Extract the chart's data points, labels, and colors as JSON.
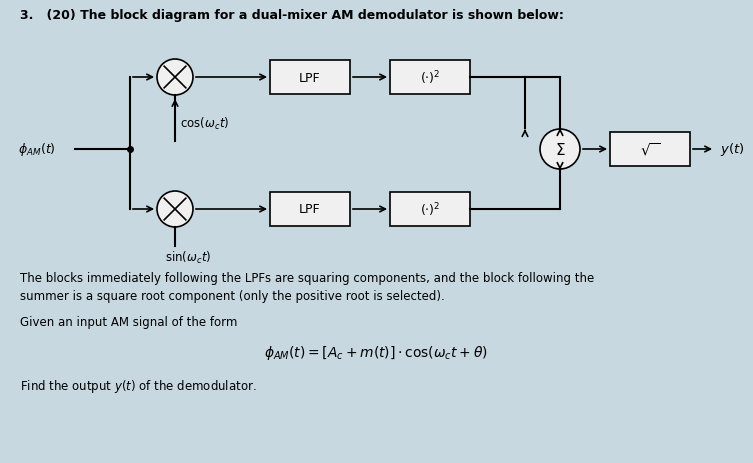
{
  "title": "3.   (20) The block diagram for a dual-mixer AM demodulator is shown below:",
  "bg_color": "#c8d8e0",
  "box_color": "#f0f0f0",
  "box_edge": "#000000",
  "line_color": "#000000",
  "text_color": "#000000",
  "body_text_line1": "The blocks immediately following the LPFs are squaring components, and the block following the",
  "body_text_line2": "summer is a square root component (only the positive root is selected).",
  "body_text_line3": "Given an input AM signal of the form",
  "formula": "$\\phi_{AM}(t) = [A_c + m(t)] \\cdot \\cos(\\omega_c t + \\theta)$",
  "footer": "Find the output $y(t)$ of the demodulator.",
  "phi_am": "$\\phi_{AM}(t)$",
  "cos_label": "$\\cos(\\omega_c t)$",
  "sin_label": "$\\sin(\\omega_c t)$",
  "lpf_label": "LPF",
  "sq_label": "$(\\cdot)^2$",
  "sigma_label": "$\\Sigma$",
  "sqrt_label": "$\\sqrt{\\ }$",
  "y_label": "$y(t)$"
}
